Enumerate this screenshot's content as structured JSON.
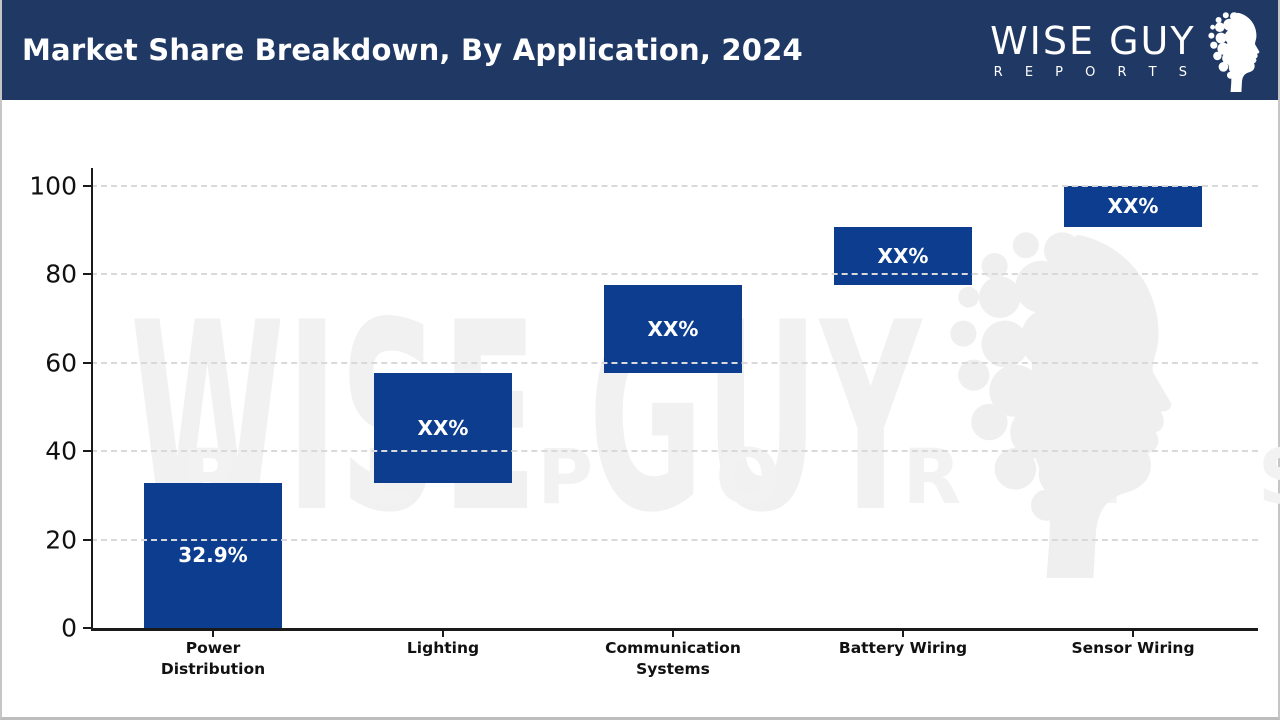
{
  "header": {
    "title": "Market Share Breakdown, By Application, 2024",
    "logo": {
      "line1": "WISE GUY",
      "line2": "R E P O R T S",
      "icon": "head-silhouette-dots-icon"
    }
  },
  "watermark": {
    "line1": "WISE GUY",
    "line2": "REPORTS",
    "icon": "head-silhouette-dots-watermark"
  },
  "colors": {
    "header_bg": "#203864",
    "bar": "#0d3d8f",
    "gridline": "#d9d9d9",
    "axis": "#1a1a1a",
    "bar_label_text": "#ffffff",
    "watermark": "#f1f1f1",
    "frame_border": "#c6c6c6"
  },
  "chart_data": {
    "type": "bar",
    "subtype": "waterfall",
    "title": "Market Share Breakdown, By Application, 2024",
    "categories": [
      "Power Distribution",
      "Lighting",
      "Communication Systems",
      "Battery Wiring",
      "Sensor Wiring"
    ],
    "segments": [
      {
        "category": "Power Distribution",
        "start": 0,
        "end": 32.9,
        "label": "32.9%"
      },
      {
        "category": "Lighting",
        "start": 32.9,
        "end": 57.7,
        "label": "XX%"
      },
      {
        "category": "Communication Systems",
        "start": 57.7,
        "end": 77.5,
        "label": "XX%"
      },
      {
        "category": "Battery Wiring",
        "start": 77.5,
        "end": 90.8,
        "label": "XX%"
      },
      {
        "category": "Sensor Wiring",
        "start": 90.8,
        "end": 100,
        "label": "XX%"
      }
    ],
    "yticks": [
      0,
      20,
      40,
      60,
      80,
      100
    ],
    "ylim": [
      0,
      100
    ],
    "xlabel": "",
    "ylabel": "",
    "grid": "horizontal-dashed-over-bars",
    "legend": "none"
  }
}
